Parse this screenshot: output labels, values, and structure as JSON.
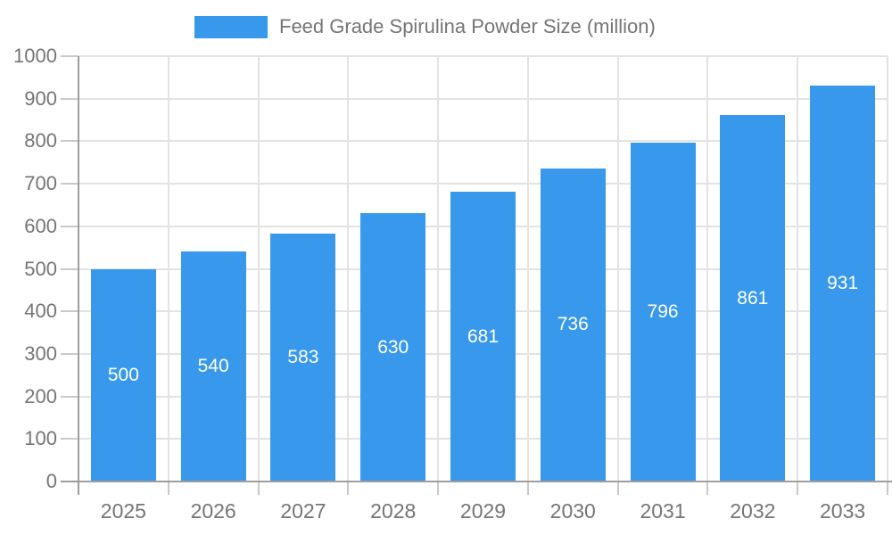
{
  "legend": {
    "label": "Feed Grade Spirulina Powder Size (million)"
  },
  "chart_data": {
    "type": "bar",
    "title": "Feed Grade Spirulina Powder Size (million)",
    "categories": [
      "2025",
      "2026",
      "2027",
      "2028",
      "2029",
      "2030",
      "2031",
      "2032",
      "2033"
    ],
    "values": [
      500,
      540,
      583,
      630,
      681,
      736,
      796,
      861,
      931
    ],
    "series": [
      {
        "name": "Feed Grade Spirulina Powder Size (million)",
        "values": [
          500,
          540,
          583,
          630,
          681,
          736,
          796,
          861,
          931
        ]
      }
    ],
    "xlabel": "",
    "ylabel": "",
    "ylim": [
      0,
      1000
    ],
    "ytick_step": 100,
    "yticks": [
      0,
      100,
      200,
      300,
      400,
      500,
      600,
      700,
      800,
      900,
      1000
    ],
    "grid": true,
    "legend_position": "top-center",
    "value_labels": "inside-center",
    "colors": {
      "bar": "#3899ec",
      "value_label": "#ffffff",
      "axis": "#9e9e9e",
      "grid": "#e3e3e3",
      "tick": "#c9c9c9",
      "text": "#757575",
      "background": "#ffffff"
    }
  }
}
